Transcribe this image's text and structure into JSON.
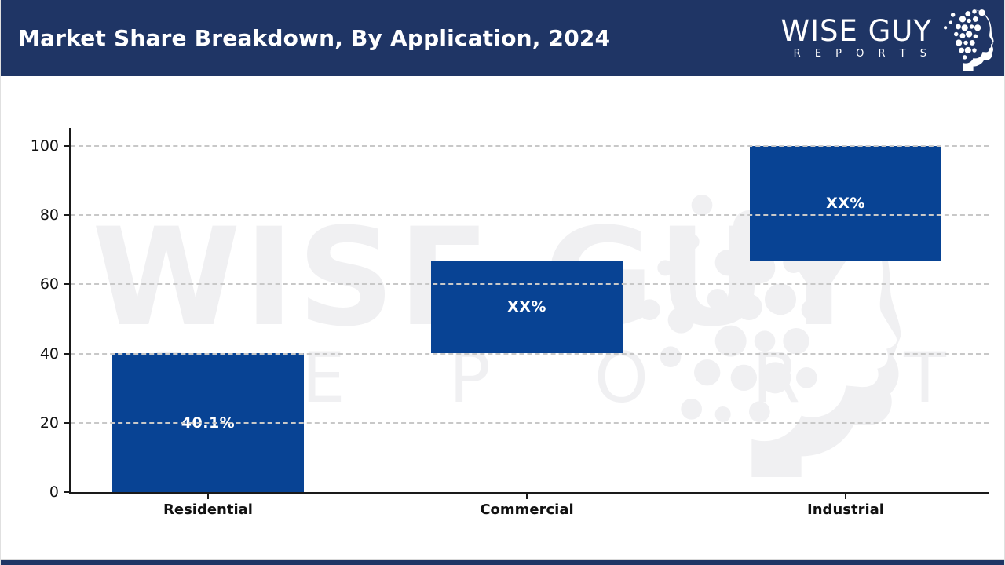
{
  "header": {
    "title": "Market Share Breakdown, By Application, 2024",
    "logo": {
      "name": "WISE GUY",
      "sub": "R E P O R T S"
    }
  },
  "watermark": {
    "line1": "WISE GUY",
    "line2": "R E P O R T S"
  },
  "chart_data": {
    "type": "bar",
    "subtype": "waterfall-breakdown",
    "title": "Market Share Breakdown, By Application, 2024",
    "categories": [
      "Residential",
      "Commercial",
      "Industrial"
    ],
    "bars": [
      {
        "category": "Residential",
        "start": 0,
        "end": 40.1,
        "label": "40.1%"
      },
      {
        "category": "Commercial",
        "start": 40.1,
        "end": 67,
        "label": "XX%"
      },
      {
        "category": "Industrial",
        "start": 67,
        "end": 100,
        "label": "XX%"
      }
    ],
    "xlabel": "",
    "ylabel": "",
    "ylim": [
      0,
      100
    ],
    "yticks": [
      0,
      20,
      40,
      60,
      80,
      100
    ],
    "grid": "horizontal-dashed",
    "legend": "none",
    "bar_color": "#084394",
    "bar_label_color": "#ffffff"
  },
  "colors": {
    "header_bg": "#1f3565",
    "footer_bg": "#1f3565",
    "bar": "#084394",
    "gridline": "#c8c8c8",
    "axis": "#1a1a1a",
    "watermark": "#f0f0f2",
    "background": "#ffffff"
  }
}
